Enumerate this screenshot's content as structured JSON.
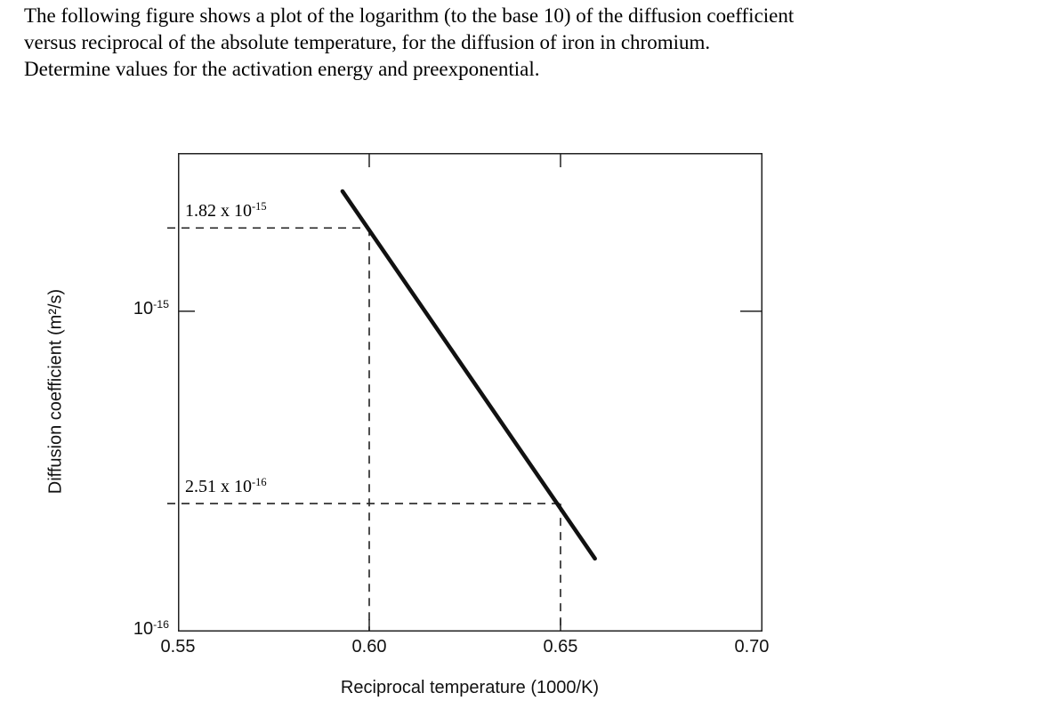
{
  "problem": {
    "line1": "The following figure shows a plot of the logarithm (to the base 10) of the diffusion coefficient",
    "line2": "versus reciprocal of the absolute temperature, for the diffusion of iron in chromium.",
    "line3": "Determine values for the activation energy and preexponential."
  },
  "chart_data": {
    "type": "line",
    "title": "",
    "xlabel": "Reciprocal temperature (1000/K)",
    "ylabel": "Diffusion coefficient (m²/s)",
    "x_scale": "linear",
    "y_scale": "log",
    "xlim": [
      0.55,
      0.7028
    ],
    "ylim_log10": [
      -16,
      -14.506
    ],
    "grid": false,
    "legend": false,
    "x_ticks": [
      {
        "value": 0.55,
        "label": "0.55"
      },
      {
        "value": 0.6,
        "label": "0.60"
      },
      {
        "value": 0.65,
        "label": "0.65"
      },
      {
        "value": 0.7,
        "label": "0.70"
      }
    ],
    "y_ticks": [
      {
        "value": 1e-15,
        "base": "10",
        "exp": "-15"
      },
      {
        "value": 1e-16,
        "base": "10",
        "exp": "-16"
      }
    ],
    "axis_ticks": {
      "top_x": [
        0.6,
        0.65
      ],
      "bottom_x": [
        0.6,
        0.65
      ],
      "left_y": [
        1e-15
      ],
      "right_y": [
        1e-15
      ]
    },
    "series": [
      {
        "name": "log D versus reciprocal temperature",
        "x": [
          0.593,
          0.659
        ],
        "y": [
          2.37e-15,
          1.69e-16
        ]
      }
    ],
    "annotations": [
      {
        "x": 0.6,
        "y": 1.82e-15,
        "text": "1.82 x 10",
        "exp": "-15"
      },
      {
        "x": 0.65,
        "y": 2.51e-16,
        "text": "2.51 x 10",
        "exp": "-16"
      }
    ],
    "line_color": "#111111",
    "frame_color": "#222222"
  }
}
